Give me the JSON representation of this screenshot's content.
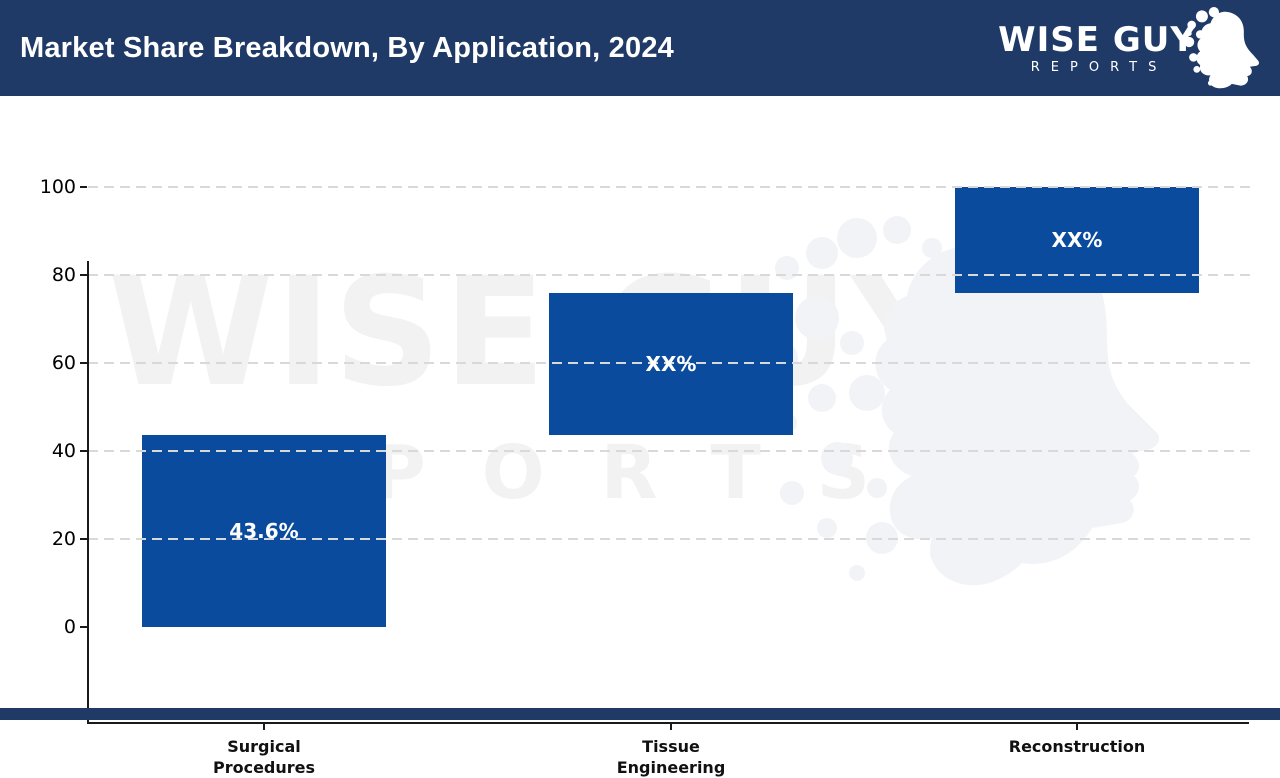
{
  "header": {
    "title": "Market Share Breakdown, By Application, 2024",
    "logo": {
      "brand": "WISE GUY",
      "sub": "REPORTS"
    }
  },
  "watermark": {
    "brand": "WISE GUY",
    "sub": "REPORTS"
  },
  "footer": {},
  "chart_data": {
    "type": "bar",
    "subtype": "waterfall-stacked-percent",
    "title": "Market Share Breakdown, By Application, 2024",
    "categories": [
      "Surgical Procedures",
      "Tissue Engineering",
      "Reconstruction"
    ],
    "segments": [
      {
        "category": "Surgical Procedures",
        "start": 0,
        "end": 43.6,
        "label": "43.6%"
      },
      {
        "category": "Tissue Engineering",
        "start": 43.6,
        "end": 76,
        "label": "XX%"
      },
      {
        "category": "Reconstruction",
        "start": 76,
        "end": 100,
        "label": "XX%"
      }
    ],
    "xlabel": "",
    "ylabel": "",
    "ylim": [
      0,
      100
    ],
    "yticks": [
      0,
      20,
      40,
      60,
      80,
      100
    ],
    "grid": "horizontal-dashed",
    "legend": "none",
    "bar_color": "#0b4b9e",
    "bar_label_color": "#ffffff",
    "grid_color": "#d9d9d9",
    "header_bg": "#1f3a67"
  }
}
